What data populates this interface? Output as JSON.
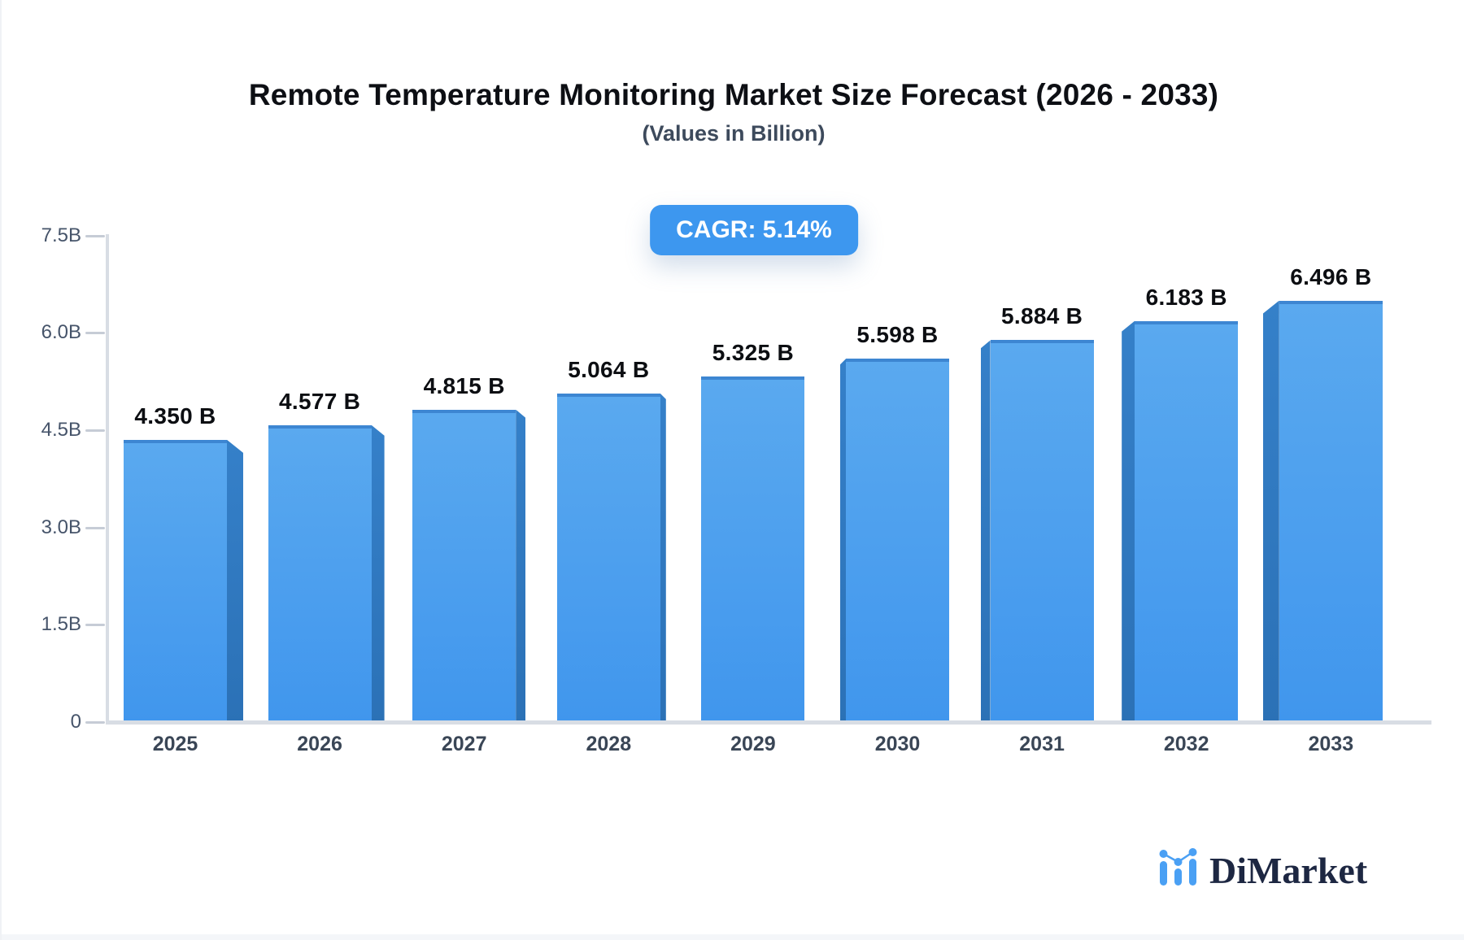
{
  "title": "Remote Temperature Monitoring Market Size Forecast (2026 - 2033)",
  "subtitle": "(Values in Billion)",
  "badge": {
    "label": "CAGR: 5.14%",
    "bg_color": "#3d97ef",
    "text_color": "#ffffff"
  },
  "chart_data": {
    "type": "bar",
    "title": "Remote Temperature Monitoring Market Size Forecast (2026 - 2033)",
    "subtitle": "(Values in Billion)",
    "unit": "Billion",
    "cagr": "5.14%",
    "categories": [
      "2025",
      "2026",
      "2027",
      "2028",
      "2029",
      "2030",
      "2031",
      "2032",
      "2033"
    ],
    "values": [
      4.35,
      4.577,
      4.815,
      5.064,
      5.325,
      5.598,
      5.884,
      6.183,
      6.496
    ],
    "value_labels": [
      "4.350 B",
      "4.577 B",
      "4.815 B",
      "5.064 B",
      "5.325 B",
      "5.598 B",
      "5.884 B",
      "6.183 B",
      "6.496 B"
    ],
    "xlabel": "",
    "ylabel": "",
    "ylim": [
      0,
      7.5
    ],
    "yticks": [
      {
        "value": 0,
        "label": "0"
      },
      {
        "value": 1.5,
        "label": "1.5B"
      },
      {
        "value": 3.0,
        "label": "3.0B"
      },
      {
        "value": 4.5,
        "label": "4.5B"
      },
      {
        "value": 6.0,
        "label": "6.0B"
      },
      {
        "value": 7.5,
        "label": "7.5B"
      }
    ],
    "grid": false,
    "legend": "none",
    "style_3d": true,
    "colors": {
      "bar_face_top": "#5aa9ef",
      "bar_face_bottom": "#4096ed",
      "bar_top_edge": "#3d86d2",
      "bar_side_top": "#3580c9",
      "bar_side_bottom": "#2b71b6",
      "axis_line": "#d8dde4",
      "tick_dash": "#c6ccd6",
      "value_text": "#0c0e12",
      "xtick_text": "#3a4656",
      "ytick_text": "#46546a"
    }
  },
  "footer": {
    "logo_text": "DiMarket",
    "logo_icon": "mini-bar-chart-icon",
    "logo_icon_color": "#4aa0f4",
    "logo_text_color": "#1d2742"
  }
}
